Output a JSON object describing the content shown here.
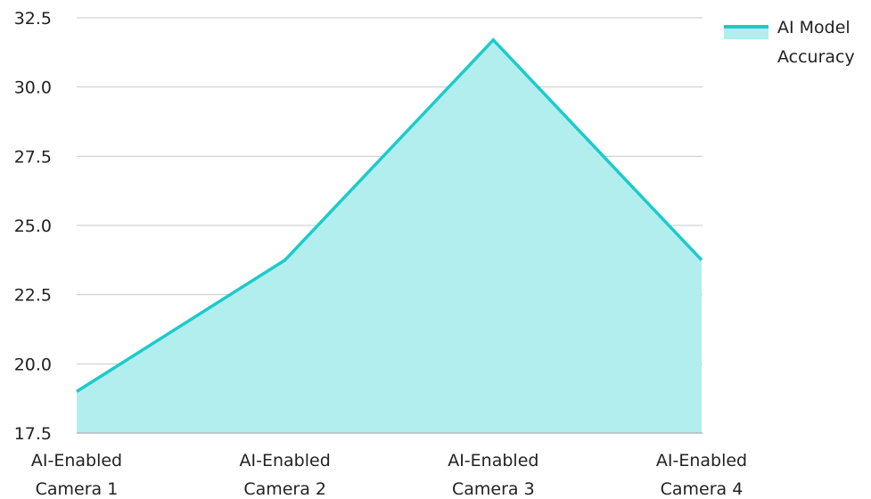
{
  "chart_data": {
    "type": "area",
    "categories": [
      [
        "AI-Enabled",
        "Camera 1"
      ],
      [
        "AI-Enabled",
        "Camera 2"
      ],
      [
        "AI-Enabled",
        "Camera 3"
      ],
      [
        "AI-Enabled",
        "Camera 4"
      ]
    ],
    "series": [
      {
        "name": "AI Model Accuracy",
        "name_lines": [
          "AI Model",
          "Accuracy"
        ],
        "values": [
          19.0,
          23.75,
          31.7,
          23.75
        ]
      }
    ],
    "ylim": [
      17.5,
      32.5
    ],
    "yticks": [
      "17.5",
      "20.0",
      "22.5",
      "25.0",
      "27.5",
      "30.0",
      "32.5"
    ],
    "grid": true,
    "legend_position": "top-right",
    "colors": {
      "line": "#1ccbc9",
      "fill": "#b2eeee",
      "grid": "#c8c8c8",
      "axis": "#b8b8b8",
      "text": "#222222"
    }
  }
}
